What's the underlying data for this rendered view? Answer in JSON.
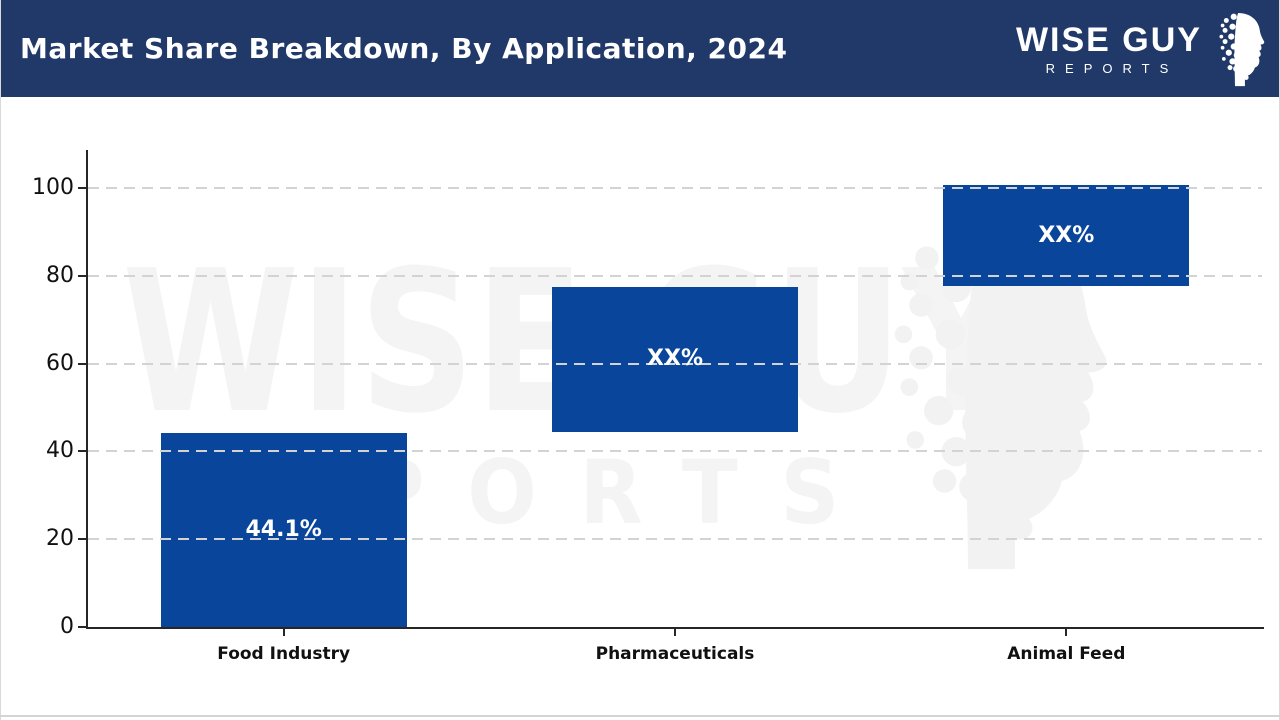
{
  "header": {
    "title": "Market Share Breakdown, By Application, 2024",
    "bg_color": "#213969",
    "logo": {
      "line1": "WISE GUY",
      "line2": "REPORTS"
    }
  },
  "watermark": {
    "line1": "WISE GUY",
    "line2": "REPORTS"
  },
  "chart_data": {
    "type": "bar",
    "subtype": "waterfall",
    "title": "Market Share Breakdown, By Application, 2024",
    "categories": [
      "Food Industry",
      "Pharmaceuticals",
      "Animal Feed"
    ],
    "segments": [
      {
        "category": "Food Industry",
        "start": 0,
        "end": 44.1,
        "label": "44.1%"
      },
      {
        "category": "Pharmaceuticals",
        "start": 44.4,
        "end": 77.5,
        "label": "XX%"
      },
      {
        "category": "Animal Feed",
        "start": 77.6,
        "end": 100.6,
        "label": "XX%"
      }
    ],
    "values_display": [
      "44.1%",
      "XX%",
      "XX%"
    ],
    "xlabel": "",
    "ylabel": "",
    "yticks": [
      0,
      20,
      40,
      60,
      80,
      100
    ],
    "ylim": [
      0,
      100
    ],
    "grid": {
      "horizontal": true,
      "style": "dashed",
      "color": "#d3d3d3",
      "drawn_above_bars": true
    },
    "legend": "none",
    "colors": {
      "bar": "#08459b",
      "bar_label": "#ffffff",
      "axis": "#262626",
      "tick_label": "#111111",
      "header_bg": "#213969",
      "watermark": "#f4f4f4"
    }
  }
}
